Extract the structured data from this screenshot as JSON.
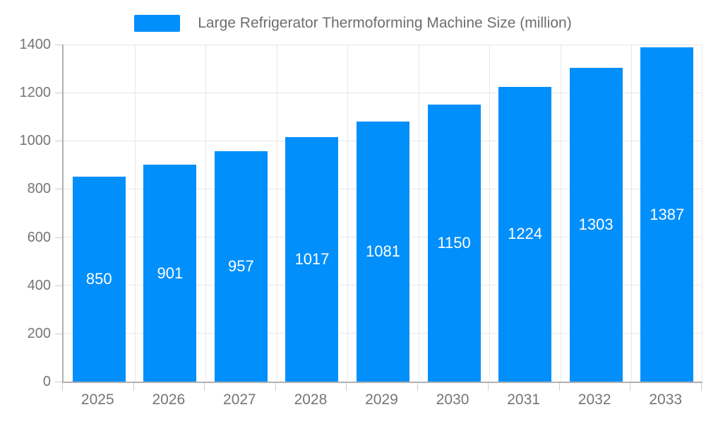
{
  "chart_data": {
    "type": "bar",
    "title": "Large Refrigerator Thermoforming Machine Size (million)",
    "categories": [
      "2025",
      "2026",
      "2027",
      "2028",
      "2029",
      "2030",
      "2031",
      "2032",
      "2033"
    ],
    "values": [
      850,
      901,
      957,
      1017,
      1081,
      1150,
      1224,
      1303,
      1387
    ],
    "xlabel": "",
    "ylabel": "",
    "ylim": [
      0,
      1400
    ],
    "yticks": [
      0,
      200,
      400,
      600,
      800,
      1000,
      1200,
      1400
    ],
    "grid": true,
    "legend_position": "top",
    "bar_color": "#008FFB",
    "value_label_color": "#ffffff"
  }
}
